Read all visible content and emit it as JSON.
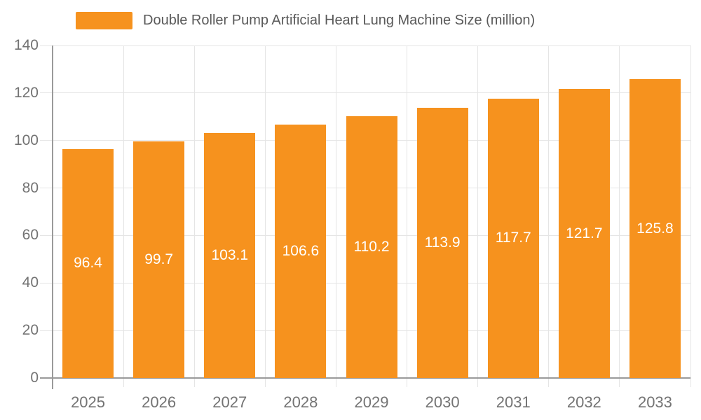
{
  "legend": {
    "label": "Double Roller Pump Artificial Heart Lung Machine Size (million)"
  },
  "colors": {
    "bar": "#F6921E",
    "gridline": "#E5E5E5",
    "axis_line": "#9A9A9A",
    "tick_text": "#737373",
    "legend_text": "#595959",
    "value_text": "#FFFFFF",
    "background": "#FFFFFF"
  },
  "chart_data": {
    "type": "bar",
    "title": "Double Roller Pump Artificial Heart Lung Machine Size (million)",
    "series_name": "Double Roller Pump Artificial Heart Lung Machine Size (million)",
    "categories": [
      "2025",
      "2026",
      "2027",
      "2028",
      "2029",
      "2030",
      "2031",
      "2032",
      "2033"
    ],
    "values": [
      96.4,
      99.7,
      103.1,
      106.6,
      110.2,
      113.9,
      117.7,
      121.7,
      125.8
    ],
    "xlabel": "",
    "ylabel": "",
    "ylim": [
      0,
      140
    ],
    "ytick_step": 20,
    "yticks": [
      0,
      20,
      40,
      60,
      80,
      100,
      120,
      140
    ],
    "grid": true,
    "legend_position": "top",
    "value_labels": "centered-in-bar, one decimal"
  }
}
